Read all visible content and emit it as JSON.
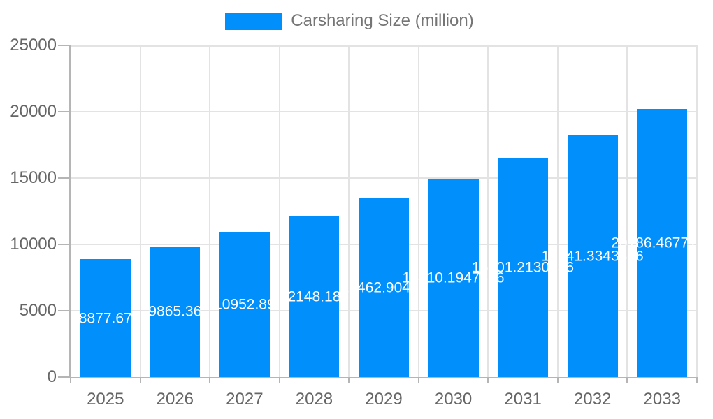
{
  "legend": {
    "items": [
      {
        "label": "Carsharing Size (million)",
        "color": "#008FFB"
      }
    ]
  },
  "chart_data": {
    "type": "bar",
    "title": "Carsharing Size (million)",
    "categories": [
      "2025",
      "2026",
      "2027",
      "2028",
      "2029",
      "2030",
      "2031",
      "2032",
      "2033"
    ],
    "series": [
      {
        "name": "Carsharing Size (million)",
        "color": "#008FFB",
        "values": [
          8877.67,
          9865.36,
          10952.89,
          12148.186,
          13462.90456,
          14910.1947566,
          16501.2130536,
          18241.3343896,
          20186.4677156
        ]
      }
    ],
    "xlabel": "",
    "ylabel": "",
    "ylim": [
      0,
      25000
    ],
    "yticks": [
      0,
      5000,
      10000,
      15000,
      20000,
      25000
    ],
    "grid": true,
    "legend_position": "top",
    "data_labels": {
      "show": true,
      "color": "#FFFFFF",
      "position": "middle"
    }
  },
  "colors": {
    "bar": "#008FFB",
    "grid_line": "#E3E3E3",
    "axis_line": "#B5B5B5",
    "axis_label_text": "#666666",
    "legend_text": "#757575",
    "data_label_text": "#FFFFFF",
    "background": "#FFFFFF"
  }
}
